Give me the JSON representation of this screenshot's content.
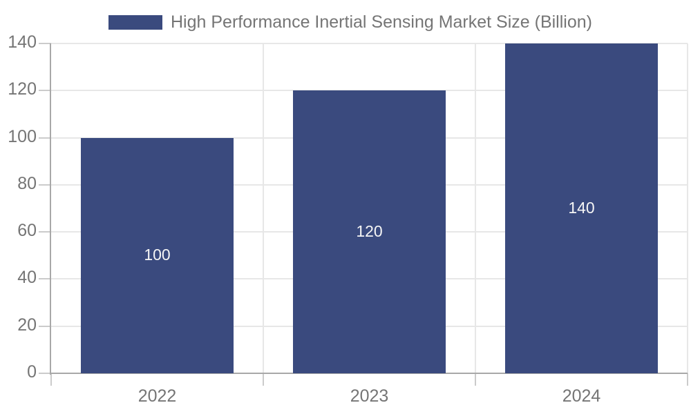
{
  "legend": {
    "label": "High Performance Inertial Sensing Market Size (Billion)"
  },
  "chart_data": {
    "type": "bar",
    "title": "High Performance Inertial Sensing Market Size (Billion)",
    "categories": [
      "2022",
      "2023",
      "2024"
    ],
    "values": [
      100,
      120,
      140
    ],
    "bar_labels": [
      "100",
      "120",
      "140"
    ],
    "xlabel": "",
    "ylabel": "",
    "ylim": [
      0,
      140
    ],
    "yticks": [
      0,
      20,
      40,
      60,
      80,
      100,
      120,
      140
    ],
    "grid": true,
    "legend_position": "top",
    "colors": {
      "bar": "#3A4A7E",
      "grid": "#E7E7E7",
      "axis": "#A8A8A8",
      "tick": "#CBCBCB",
      "axis_text": "#757575",
      "bar_label_text": "#F5F5F5",
      "background": "#FFFFFF"
    }
  }
}
